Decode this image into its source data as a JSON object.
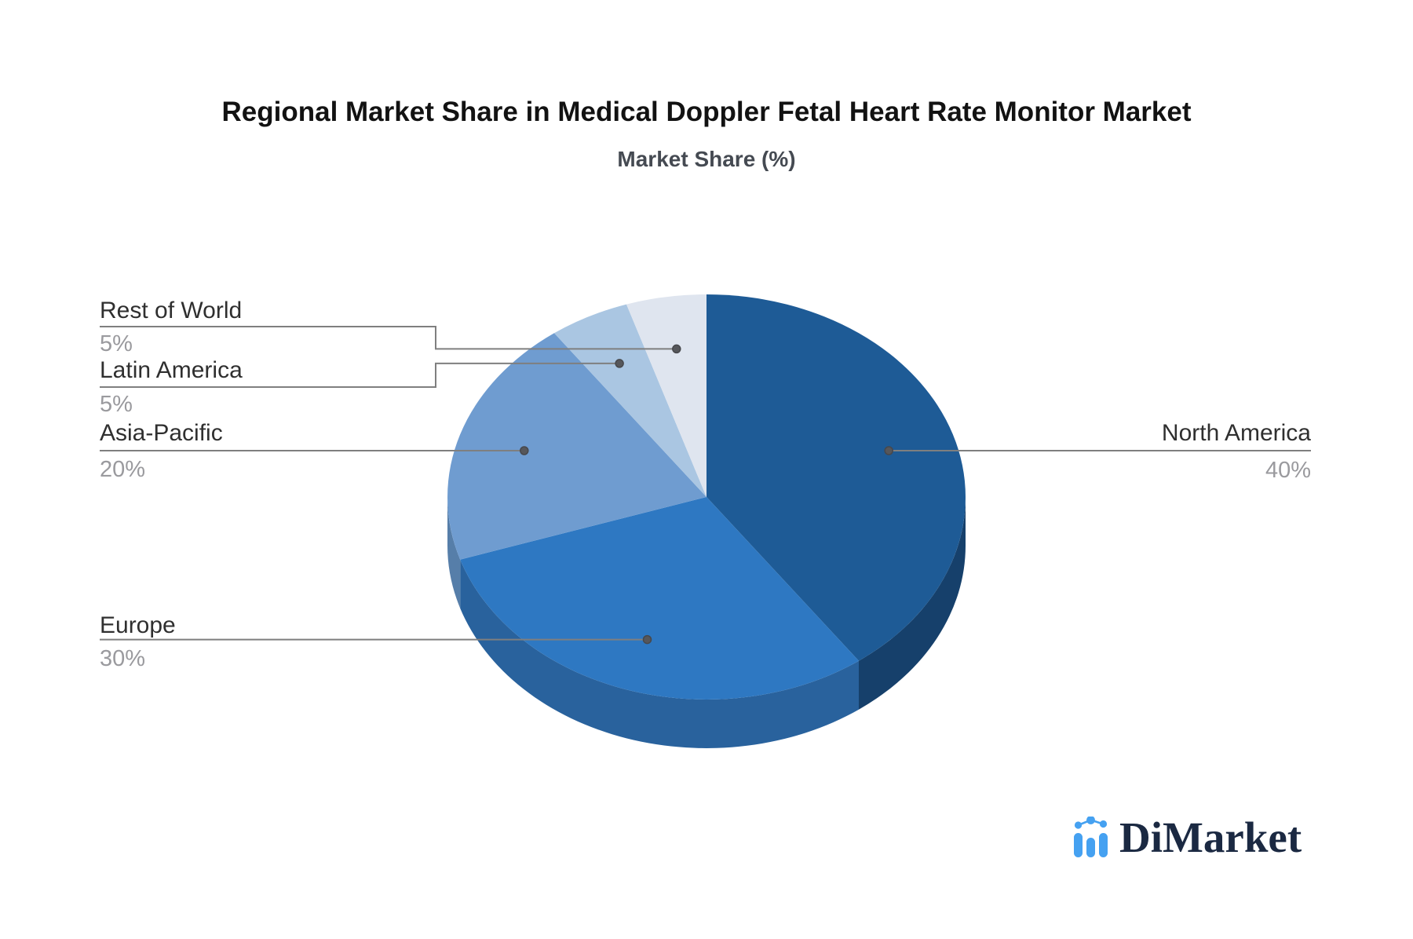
{
  "header": {
    "title": "Regional Market Share in Medical Doppler Fetal Heart Rate Monitor Market",
    "subtitle": "Market Share (%)"
  },
  "chart_data": {
    "type": "pie",
    "title": "Regional Market Share in Medical Doppler Fetal Heart Rate Monitor Market",
    "subtitle": "Market Share (%)",
    "unit": "%",
    "start_angle_deg": 0,
    "direction": "clockwise",
    "effect": "3d-depth",
    "categories": [
      "North America",
      "Europe",
      "Asia-Pacific",
      "Latin America",
      "Rest of World"
    ],
    "values": [
      40,
      30,
      20,
      5,
      5
    ],
    "slices": [
      {
        "label": "North America",
        "value": 40,
        "value_label": "40%",
        "color": "#1e5b96",
        "side_color": "#16406b"
      },
      {
        "label": "Europe",
        "value": 30,
        "value_label": "30%",
        "color": "#2e78c2",
        "side_color": "#29629d"
      },
      {
        "label": "Asia-Pacific",
        "value": 20,
        "value_label": "20%",
        "color": "#6f9cd0",
        "side_color": "#567ea9"
      },
      {
        "label": "Latin America",
        "value": 5,
        "value_label": "5%",
        "color": "#aac6e2",
        "side_color": null
      },
      {
        "label": "Rest of World",
        "value": 5,
        "value_label": "5%",
        "color": "#dfe5ef",
        "side_color": null
      }
    ],
    "leader_line_color": "#7f7f7f",
    "leader_dot_color": "#56575b",
    "label_text_color": "#2f2f2f",
    "value_text_color": "#9a9a9e",
    "legend_position": "none",
    "grid": false
  },
  "logo": {
    "text": "DiMarket",
    "icon": "bar-chart-icon",
    "text_color": "#1b2942",
    "icon_color": "#45a1f1"
  }
}
